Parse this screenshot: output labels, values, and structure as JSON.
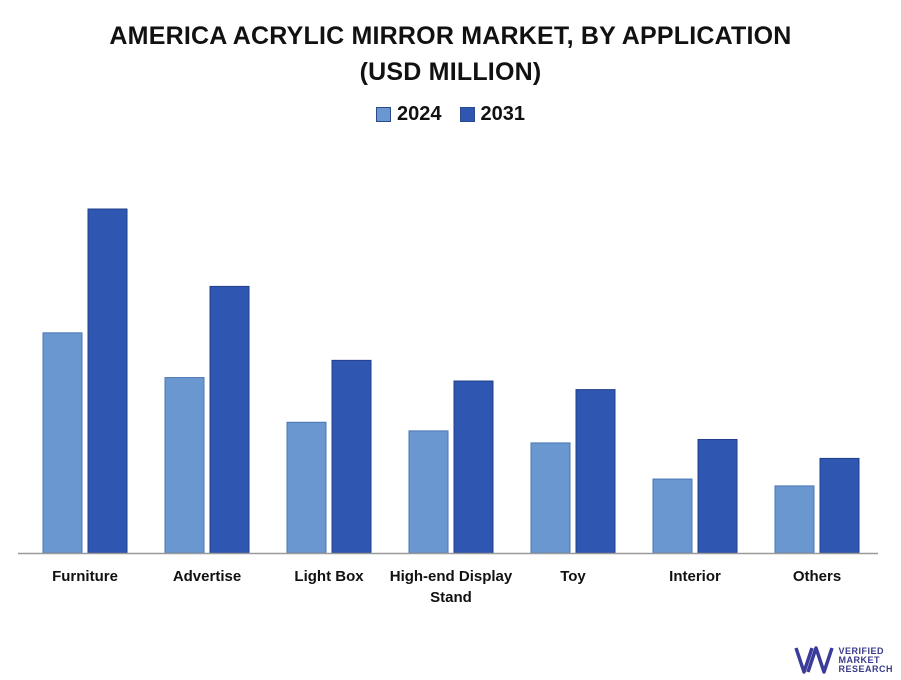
{
  "title_line1": "AMERICA ACRYLIC MIRROR MARKET, BY APPLICATION",
  "title_line2": "(USD MILLION)",
  "legend": [
    {
      "name": "2024",
      "color": "#6a97d0"
    },
    {
      "name": "2031",
      "color": "#2f56b0"
    }
  ],
  "chart_data": {
    "type": "bar",
    "categories": [
      "Furniture",
      "Advertise",
      "Light Box",
      "High-end Display Stand",
      "Toy",
      "Interior",
      "Others"
    ],
    "category_lines": [
      [
        "Furniture"
      ],
      [
        "Advertise"
      ],
      [
        "Light Box"
      ],
      [
        "High-end Display",
        "Stand"
      ],
      [
        "Toy"
      ],
      [
        "Interior"
      ],
      [
        "Others"
      ]
    ],
    "series": [
      {
        "name": "2024",
        "values": [
          64,
          51,
          38,
          35.5,
          32,
          21.5,
          19.5
        ]
      },
      {
        "name": "2031",
        "values": [
          100,
          77.5,
          56,
          50,
          47.5,
          33,
          27.5
        ]
      }
    ],
    "ylim": [
      0,
      100
    ],
    "grid": false,
    "legend_position": "top-center"
  },
  "logo": {
    "line1": "VERIFIED",
    "line2": "MARKET",
    "line3": "RESEARCH",
    "mark": "VM"
  }
}
